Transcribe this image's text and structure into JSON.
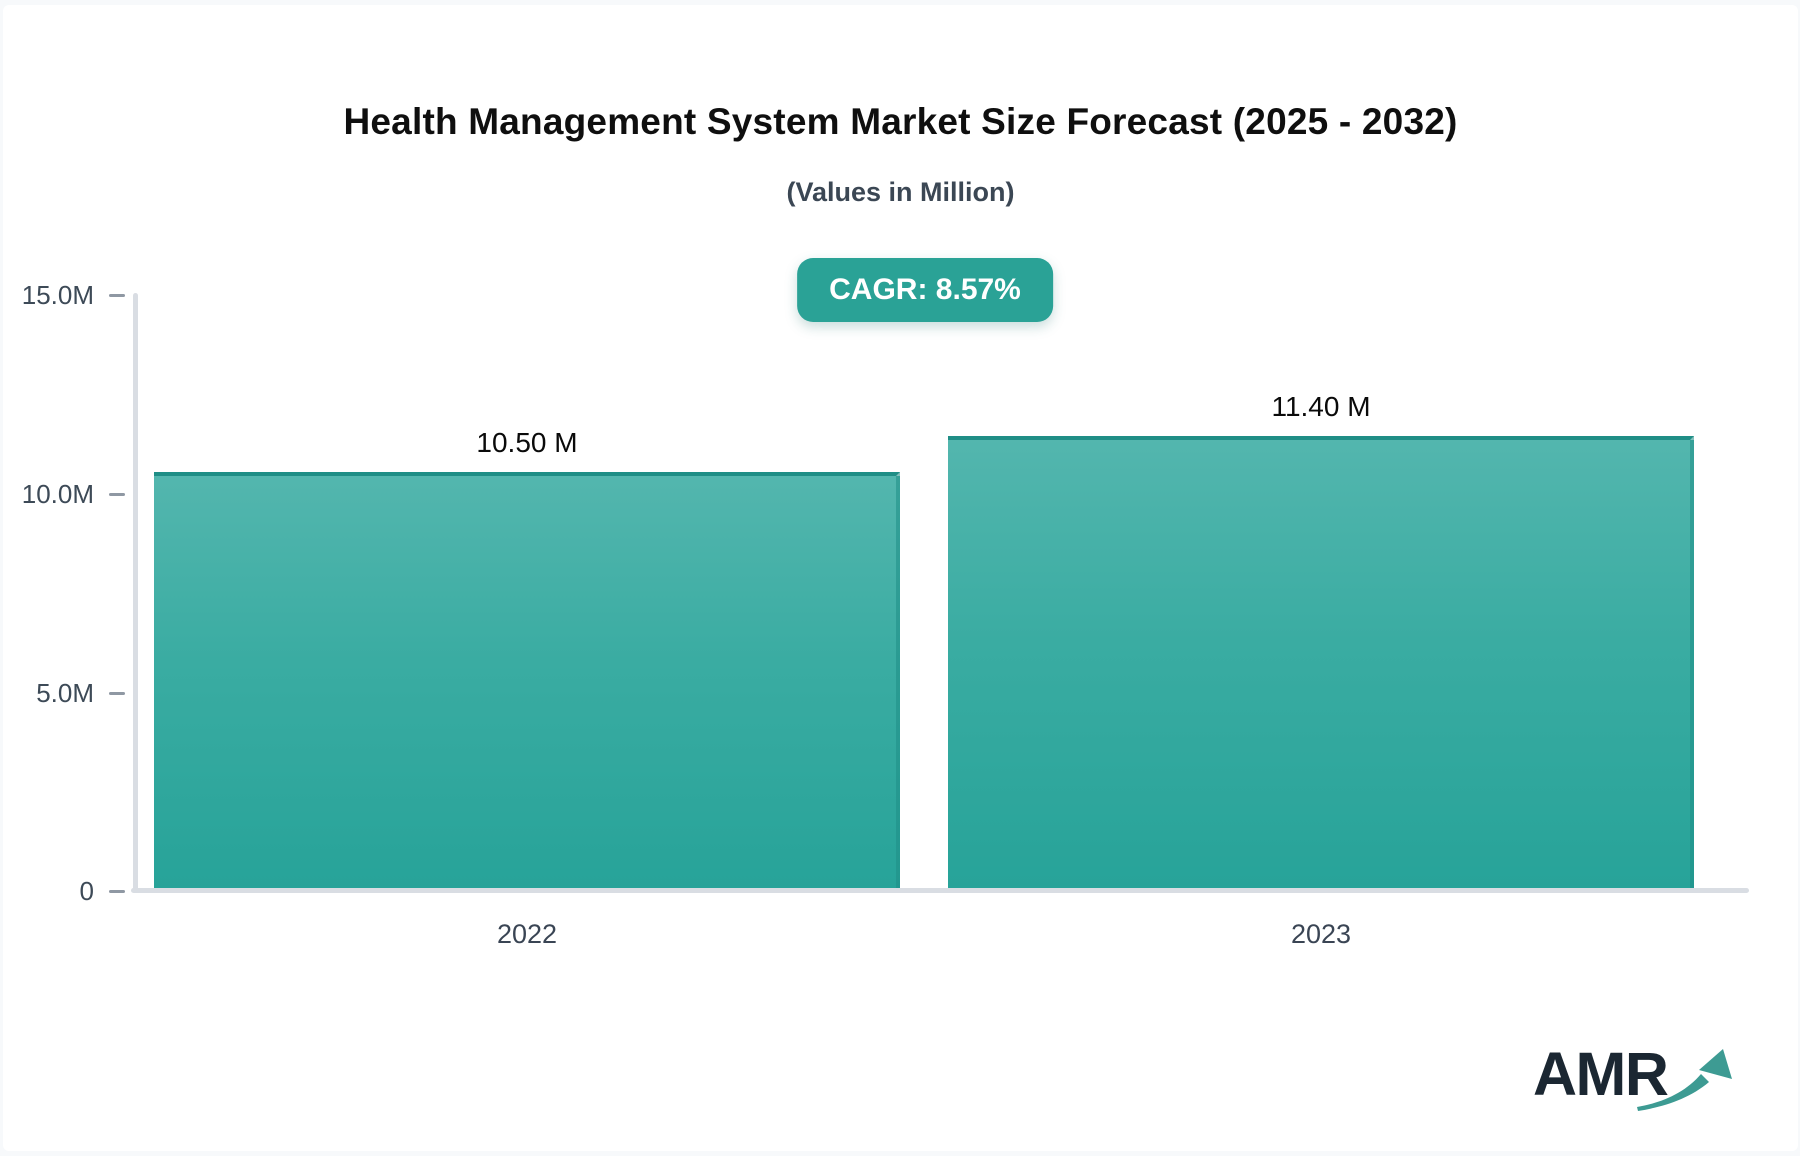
{
  "header": {
    "title": "Health Management System Market Size Forecast (2025 - 2032)",
    "subtitle": "(Values in Million)"
  },
  "badge": {
    "label": "CAGR: 8.57%"
  },
  "chart_data": {
    "type": "bar",
    "title": "Health Management System Market Size Forecast (2025 - 2032)",
    "subtitle": "(Values in Million)",
    "categories": [
      "2022",
      "2023"
    ],
    "values": [
      10.5,
      11.4
    ],
    "value_labels": [
      "10.50 M",
      "11.40 M"
    ],
    "cagr_label": "CAGR: 8.57%",
    "xlabel": "",
    "ylabel": "",
    "ylim": [
      0,
      15
    ],
    "yticks": [
      "15.0M",
      "10.0M",
      "5.0M",
      "0"
    ],
    "ytick_values": [
      15,
      10,
      5,
      0
    ],
    "grid": false,
    "legend": false,
    "bar_gradient_top": "#53b6ae",
    "bar_gradient_bottom": "#27a399",
    "bar_stroke": "#1f8e86",
    "badge_color": "#2aa296",
    "axis_color": "#d9dde3"
  },
  "logo": {
    "text": "AMR",
    "arrow_color": "#3d9b93",
    "text_color": "#1b2732"
  }
}
